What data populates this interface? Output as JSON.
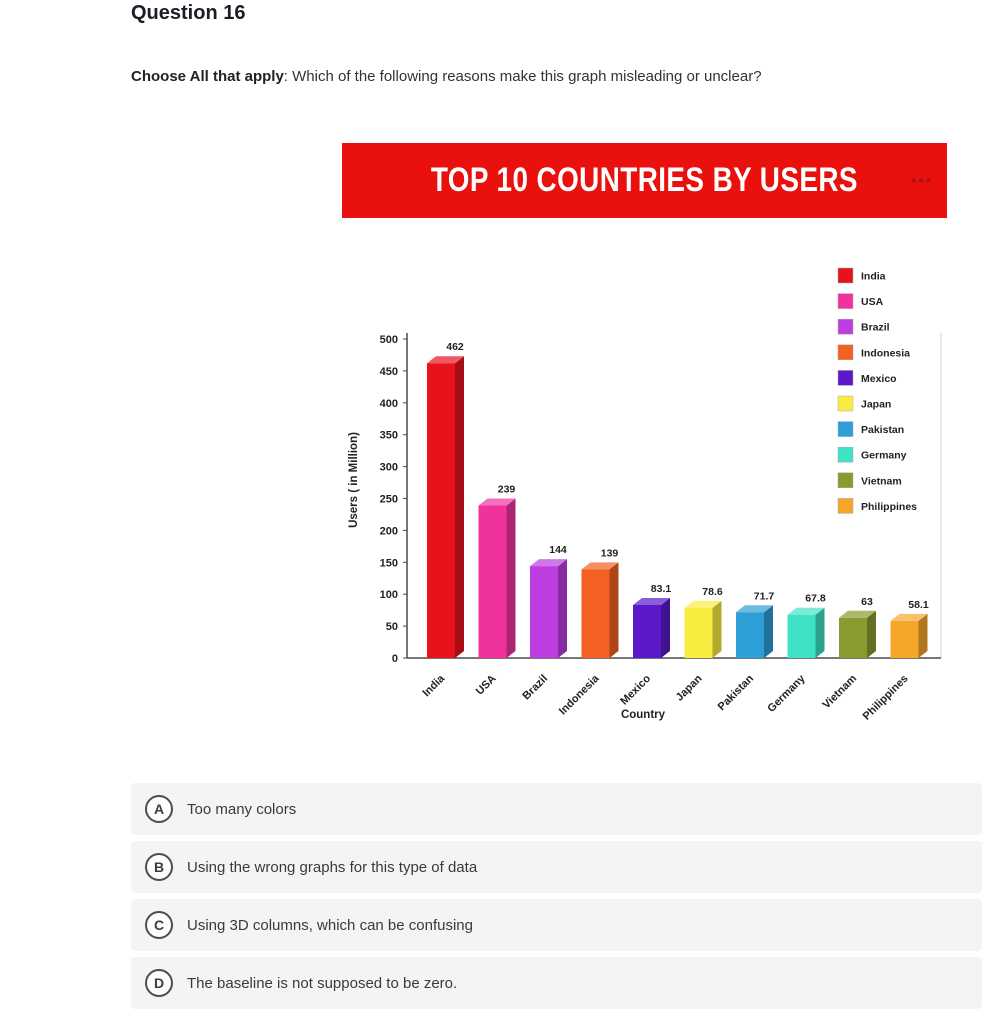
{
  "question": {
    "number_label": "Question 16",
    "prompt_bold": "Choose All that apply",
    "prompt_rest": ": Which of the following reasons make this graph misleading or unclear?"
  },
  "chart": {
    "banner_title": "TOP 10 COUNTRIES BY USERS",
    "menu_dots": "•••"
  },
  "chart_data": {
    "type": "bar",
    "style": "3d-column",
    "title": "TOP 10 COUNTRIES BY USERS",
    "categories": [
      "India",
      "USA",
      "Brazil",
      "Indonesia",
      "Mexico",
      "Japan",
      "Pakistan",
      "Germany",
      "Vietnam",
      "Philippines"
    ],
    "values": [
      462,
      239,
      144,
      139,
      83.1,
      78.6,
      71.7,
      67.8,
      63,
      58.1
    ],
    "value_labels": [
      "462",
      "239",
      "144",
      "139",
      "83.1",
      "78.6",
      "71.7",
      "67.8",
      "63",
      "58.1"
    ],
    "colors": [
      "#e8121d",
      "#f0329f",
      "#bc3ee0",
      "#f26022",
      "#5a18c8",
      "#f8ec3f",
      "#2d9fd6",
      "#3fe2c5",
      "#8a9a2e",
      "#f5a72a"
    ],
    "xlabel": "Country",
    "ylabel": "Users ( in Million)",
    "ylim": [
      0,
      500
    ],
    "ytick_step": 50,
    "legend_position": "upper right",
    "grid": false,
    "banner_color": "#e9100d"
  },
  "options": [
    {
      "letter": "A",
      "label": "Too many colors"
    },
    {
      "letter": "B",
      "label": "Using the wrong graphs for this type of data"
    },
    {
      "letter": "C",
      "label": "Using 3D columns, which can be confusing"
    },
    {
      "letter": "D",
      "label": "The baseline is not supposed to be zero."
    }
  ]
}
